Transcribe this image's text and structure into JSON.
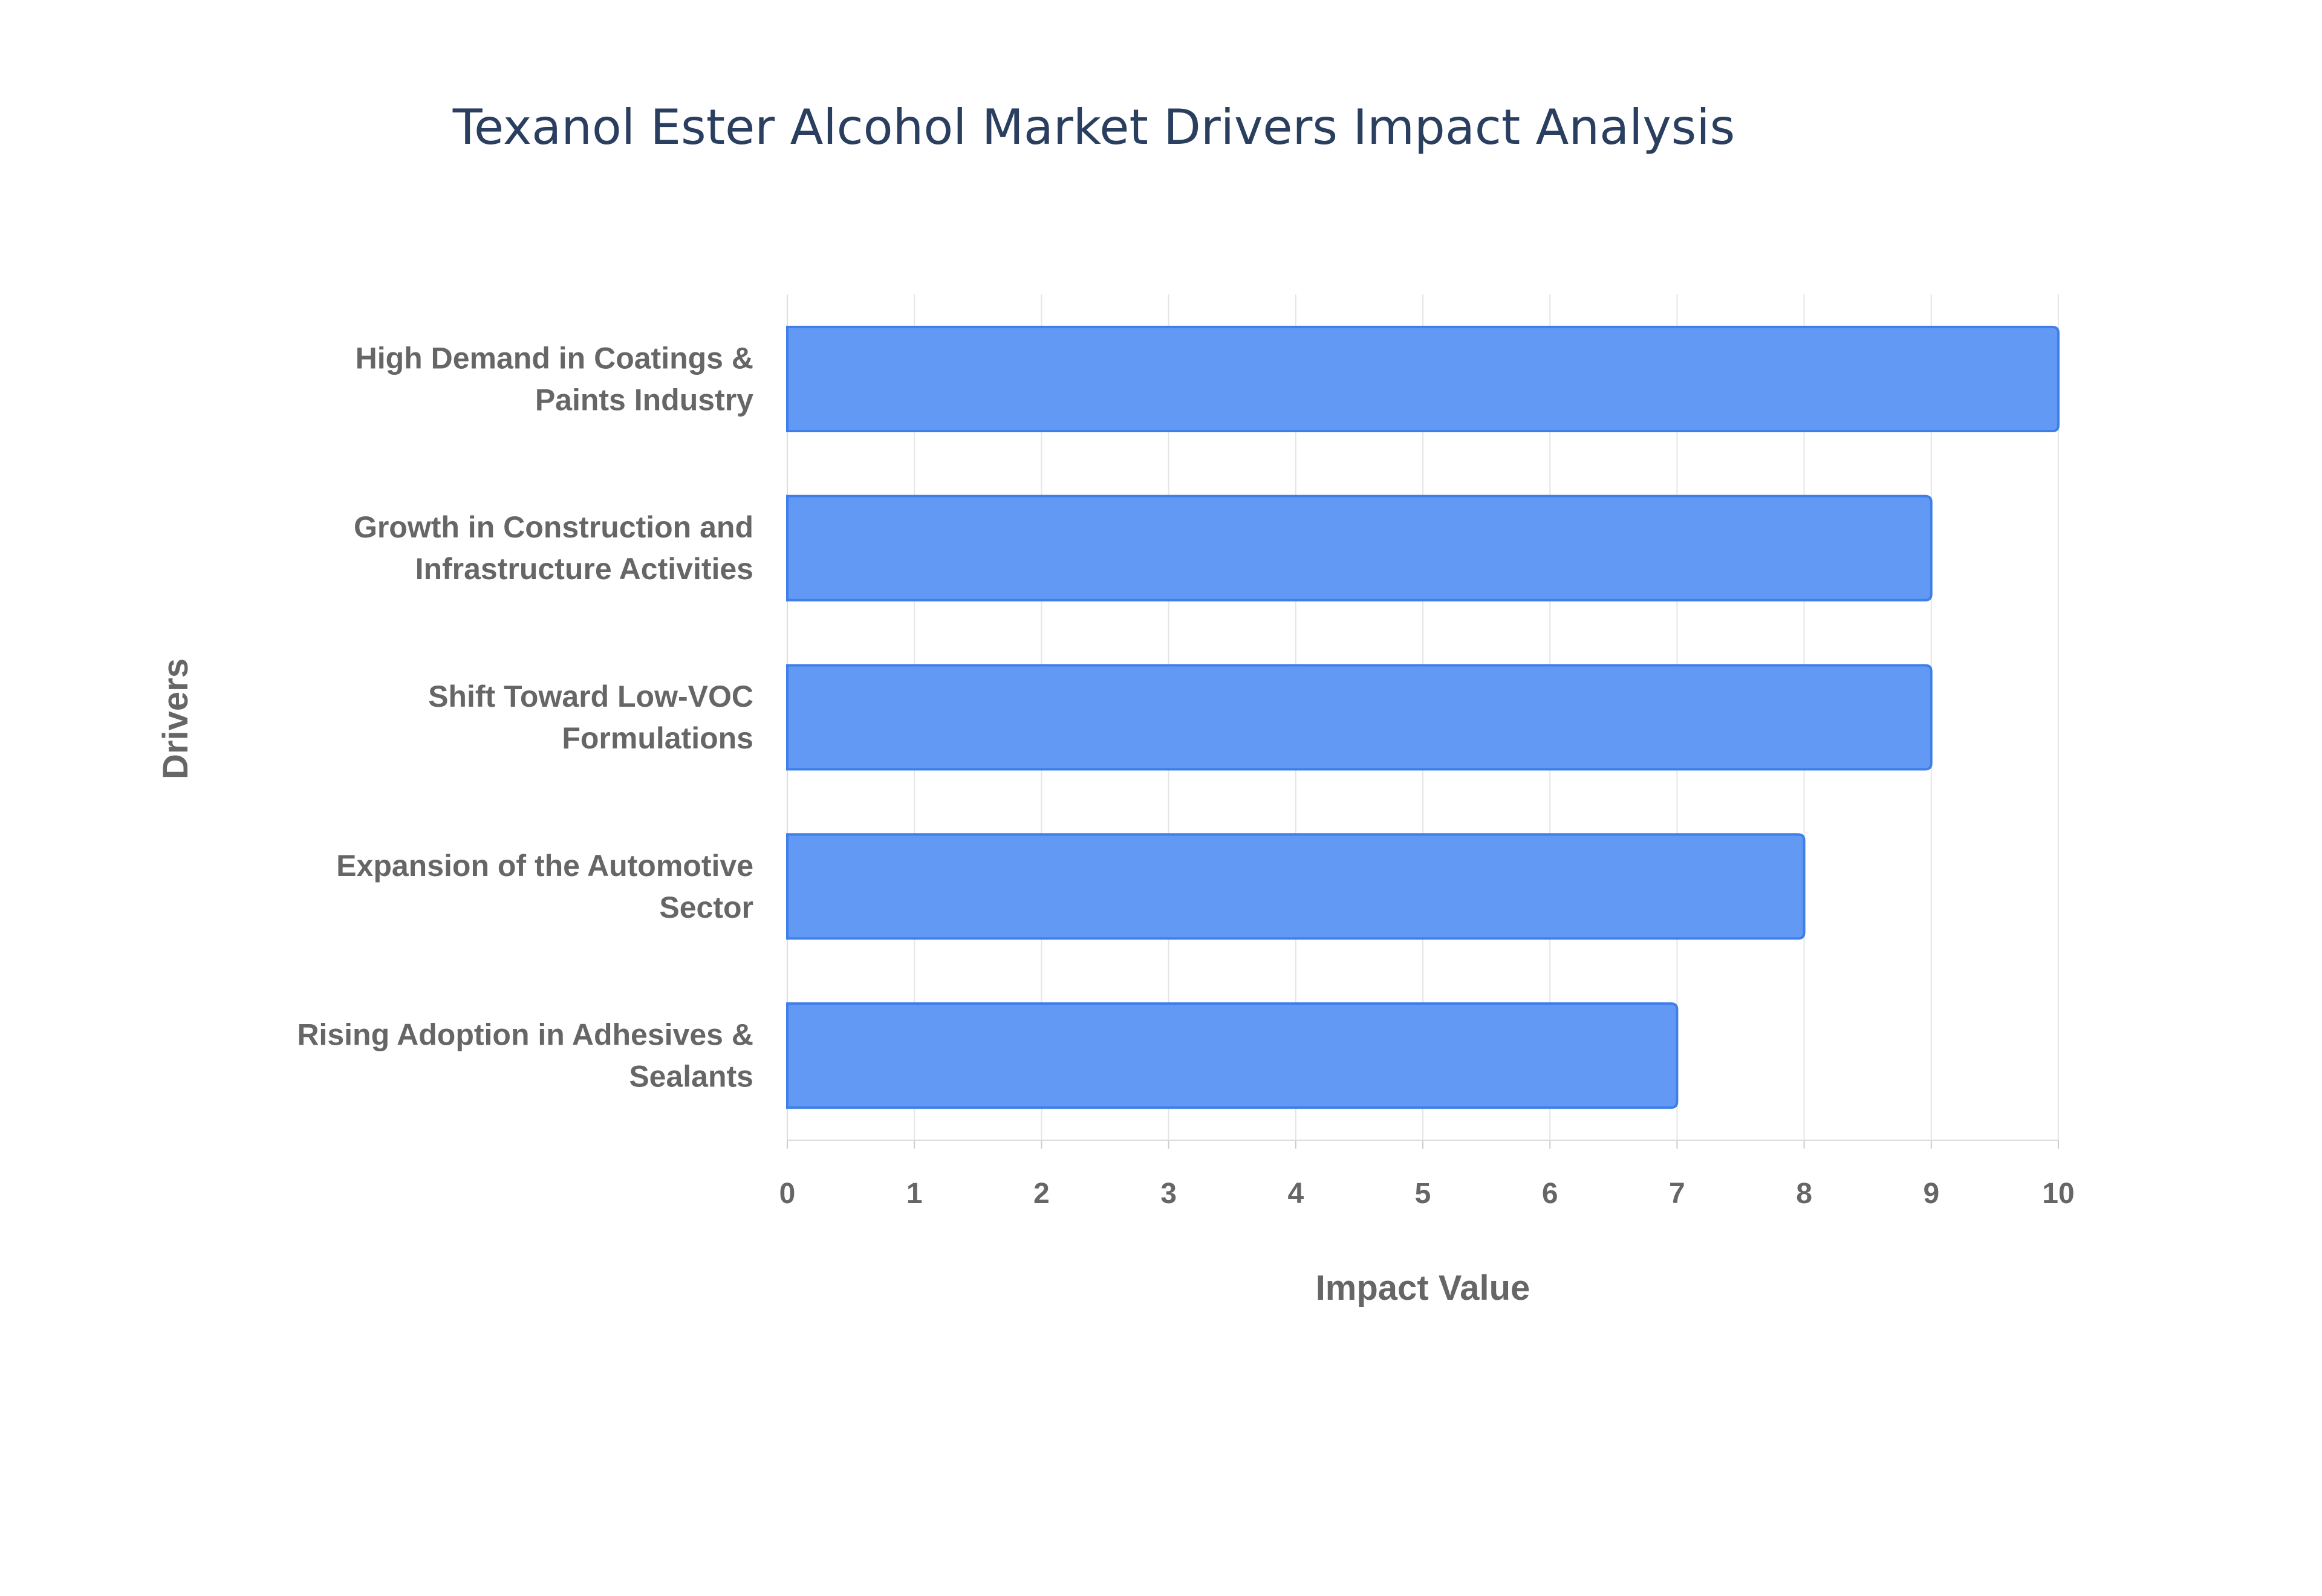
{
  "chart_data": {
    "type": "bar",
    "orientation": "horizontal",
    "title": "Texanol Ester Alcohol Market Drivers Impact Analysis",
    "xlabel": "Impact Value",
    "ylabel": "Drivers",
    "categories": [
      [
        "High Demand in Coatings &",
        "Paints Industry"
      ],
      [
        "Growth in Construction and",
        "Infrastructure Activities"
      ],
      [
        "Shift Toward Low-VOC",
        "Formulations"
      ],
      [
        "Expansion of the Automotive",
        "Sector"
      ],
      [
        "Rising Adoption in Adhesives &",
        "Sealants"
      ]
    ],
    "values": [
      10,
      9,
      9,
      8,
      7
    ],
    "xlim": [
      0,
      10
    ],
    "xticks": [
      "0",
      "1",
      "2",
      "3",
      "4",
      "5",
      "6",
      "7",
      "8",
      "9",
      "10"
    ],
    "grid": true,
    "legend": "none",
    "colors": {
      "bar": "#6199f5",
      "bar_border": "#3f7fe8",
      "grid": "#e5e5e5",
      "text": "#666666",
      "title": "#2a3f5f"
    }
  }
}
